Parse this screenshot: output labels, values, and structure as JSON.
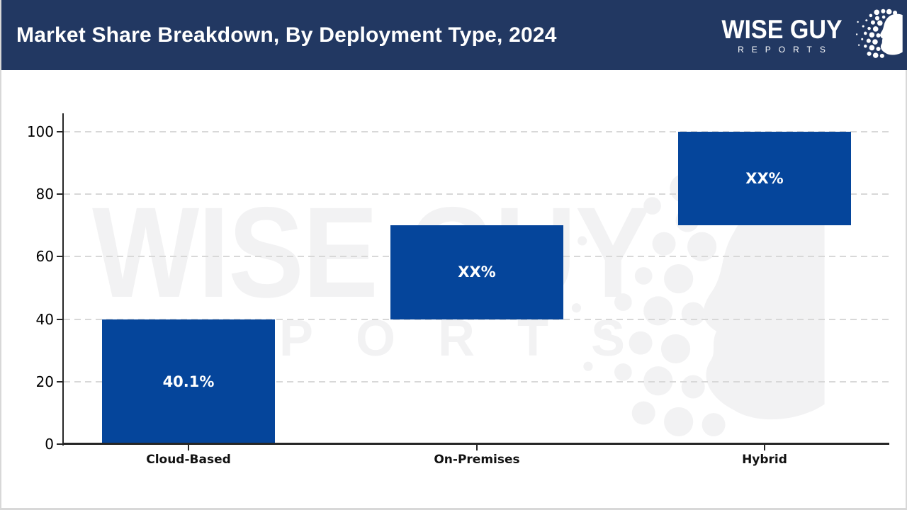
{
  "header": {
    "title": "Market Share Breakdown, By Deployment Type, 2024",
    "logo": {
      "line1": "WISE GUY",
      "line2": "REPORTS",
      "icon": "face-profile-dots-icon"
    }
  },
  "watermark": {
    "line1": "WISE GUY",
    "line2": "REPORTS"
  },
  "colors": {
    "header_bg": "#223862",
    "header_text": "#ffffff",
    "bar_fill": "#05459b",
    "bar_label_text": "#ffffff",
    "watermark_gray": "#f2f2f3",
    "gridline_gray": "#d8d8d8",
    "axis_dark": "#262626",
    "page_border_gray": "#d8d8d8"
  },
  "chart_data": {
    "type": "bar",
    "subtype": "floating-stacked-segments",
    "title": "Market Share Breakdown, By Deployment Type, 2024",
    "categories": [
      "Cloud-Based",
      "On-Premises",
      "Hybrid"
    ],
    "segments": [
      {
        "category": "Cloud-Based",
        "from": 0,
        "to": 40,
        "label": "40.1%"
      },
      {
        "category": "On-Premises",
        "from": 40,
        "to": 70,
        "label": "XX%"
      },
      {
        "category": "Hybrid",
        "from": 70,
        "to": 100,
        "label": "XX%"
      }
    ],
    "ylim": [
      0,
      100
    ],
    "yticks": [
      0,
      20,
      40,
      60,
      80,
      100
    ],
    "xlabel": "",
    "ylabel": "",
    "grid": "horizontal-dashed",
    "legend": "none"
  }
}
